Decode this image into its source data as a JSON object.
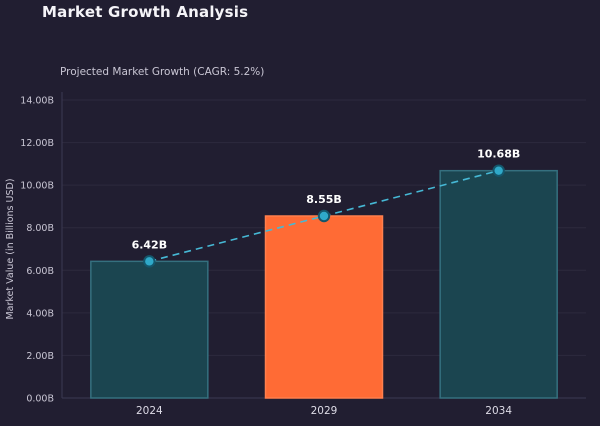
{
  "header": {
    "title": "Market Growth Analysis",
    "subtitle": "Projected Market Growth (CAGR: 5.2%)"
  },
  "chart_data": {
    "type": "bar",
    "title": "Market Growth Analysis",
    "subtitle": "Projected Market Growth (CAGR: 5.2%)",
    "categories": [
      "2024",
      "2029",
      "2034"
    ],
    "values": [
      6.42,
      8.55,
      10.68
    ],
    "value_labels": [
      "6.42B",
      "8.55B",
      "10.68B"
    ],
    "ylabel": "Market Value (in Billions USD)",
    "xlabel": "",
    "ylim": [
      0,
      14
    ],
    "ytick_step": 2,
    "ytick_labels": [
      "0.00B",
      "2.00B",
      "4.00B",
      "6.00B",
      "8.00B",
      "10.00B",
      "12.00B",
      "14.00B"
    ],
    "grid": true,
    "legend": "none",
    "trend_overlay": {
      "type": "line",
      "style": "dashed",
      "values": [
        6.42,
        8.55,
        10.68
      ]
    },
    "colors": {
      "background": "#211e31",
      "bar_fill": [
        "#1b4550",
        "#ff6b35",
        "#1b4550"
      ],
      "bar_border": [
        "#35707f",
        "#ff7f4d",
        "#35707f"
      ],
      "trend_line": "#46b8d5",
      "marker_fill": "#2fa9c9",
      "marker_border": "#14566b",
      "grid": "#2d2a3e",
      "axis": "#3c3952",
      "tick_text": "#c9c6d4",
      "x_tick_text": "#dddbe6",
      "value_label": "#ffffff",
      "title": "#f5f4f8",
      "subtitle": "#c9c6d4"
    }
  }
}
